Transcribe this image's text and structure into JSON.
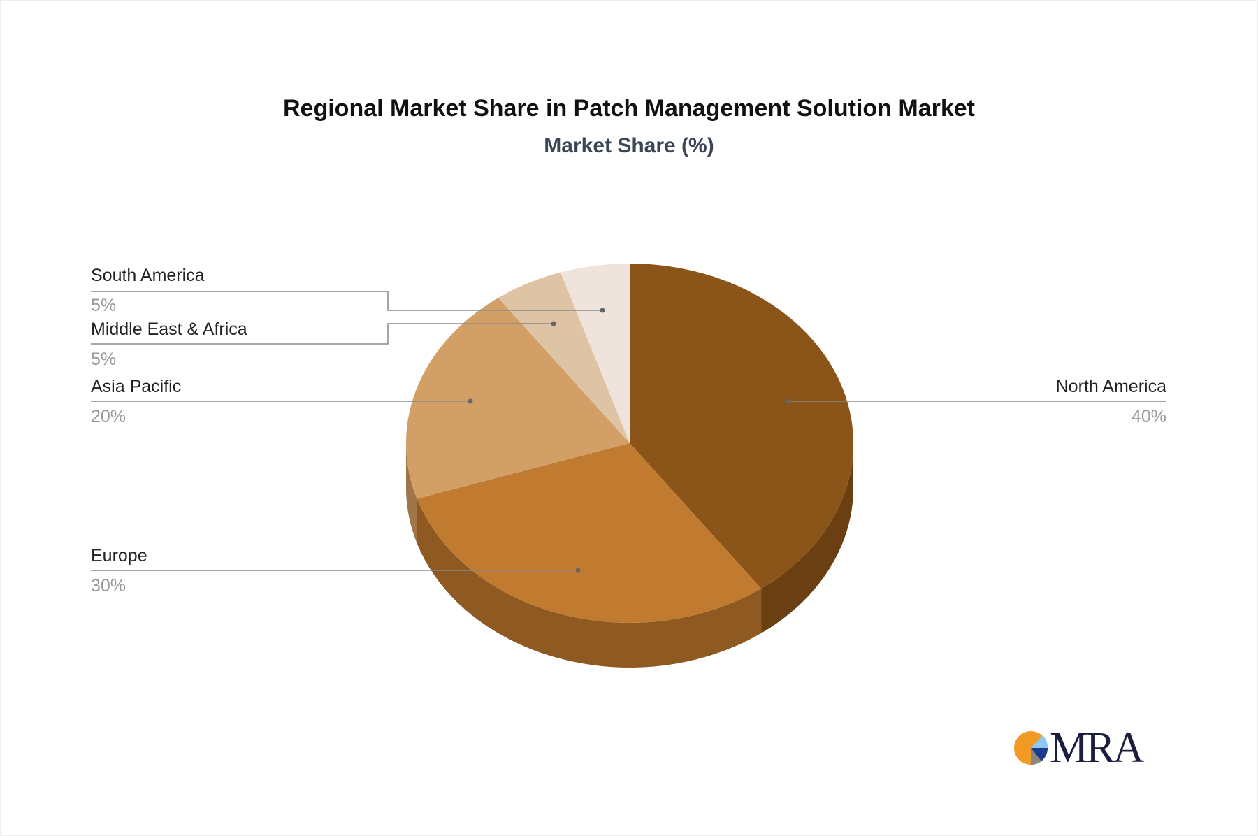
{
  "chart_data": {
    "type": "pie",
    "title": "Regional Market Share in Patch Management Solution Market",
    "subtitle": "Market Share (%)",
    "slices": [
      {
        "label": "North America",
        "value": 40,
        "pct_label": "40%",
        "color": "#8B5519",
        "side_color": "#6A3F12"
      },
      {
        "label": "Europe",
        "value": 30,
        "pct_label": "30%",
        "color": "#C07B30",
        "side_color": "#8F5A22"
      },
      {
        "label": "Asia Pacific",
        "value": 20,
        "pct_label": "20%",
        "color": "#D2A067",
        "side_color": "#A07648"
      },
      {
        "label": "Middle East & Africa",
        "value": 5,
        "pct_label": "5%",
        "color": "#DFC3A5",
        "side_color": "#B39a80"
      },
      {
        "label": "South America",
        "value": 5,
        "pct_label": "5%",
        "color": "#EEE4DC",
        "side_color": "#c9bdb3"
      }
    ],
    "style": "3d-pie",
    "legend": "none"
  },
  "logo": {
    "text": "MRA"
  }
}
